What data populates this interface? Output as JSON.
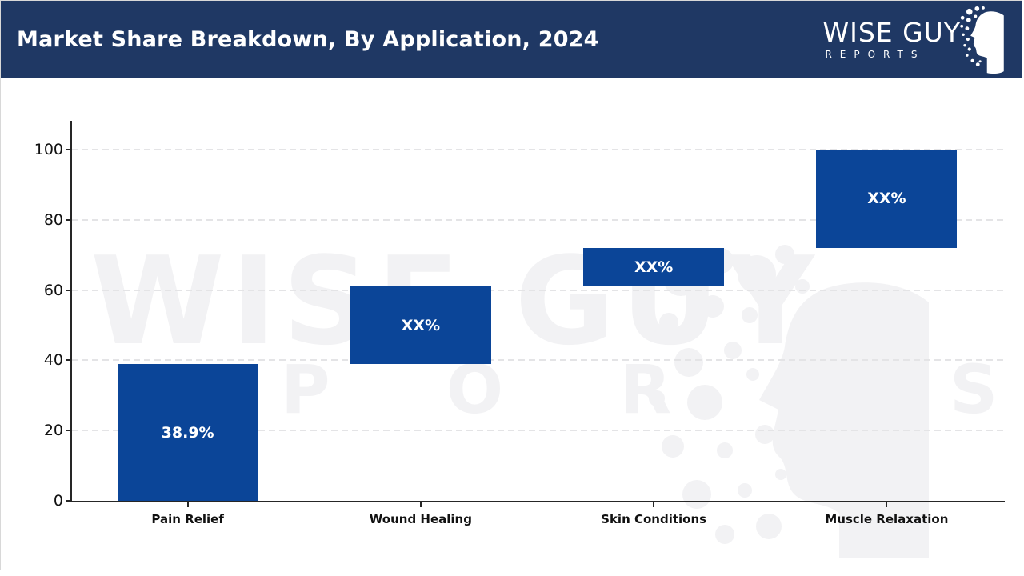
{
  "header": {
    "title": "Market Share Breakdown, By Application, 2024",
    "logo": {
      "line1": "WISE GUY",
      "line2": "REPORTS"
    }
  },
  "watermark": {
    "line1": "WISE GUY",
    "line2": "P O R T S"
  },
  "chart_data": {
    "type": "bar",
    "subtype": "waterfall",
    "title": "Market Share Breakdown, By Application, 2024",
    "categories": [
      "Pain Relief",
      "Wound Healing",
      "Skin Conditions",
      "Muscle Relaxation"
    ],
    "segments": [
      {
        "category": "Pain Relief",
        "start": 0,
        "end": 38.9,
        "label": "38.9%"
      },
      {
        "category": "Wound Healing",
        "start": 38.9,
        "end": 61.0,
        "label": "XX%"
      },
      {
        "category": "Skin Conditions",
        "start": 61.0,
        "end": 72.0,
        "label": "XX%"
      },
      {
        "category": "Muscle Relaxation",
        "start": 72.0,
        "end": 100.0,
        "label": "XX%"
      }
    ],
    "yticks": [
      0,
      20,
      40,
      60,
      80,
      100
    ],
    "ylim": [
      0,
      108
    ],
    "xlabel": "",
    "ylabel": "",
    "grid": "horizontal-dashed",
    "legend": "none",
    "bar_color": "#0b4598",
    "value_label_color": "#ffffff"
  },
  "colors": {
    "header_bg": "#1f3864",
    "bar": "#0b4598",
    "grid": "#e4e4e6",
    "axis": "#262626",
    "tick_label": "#111111",
    "watermark": "#f2f2f4"
  }
}
